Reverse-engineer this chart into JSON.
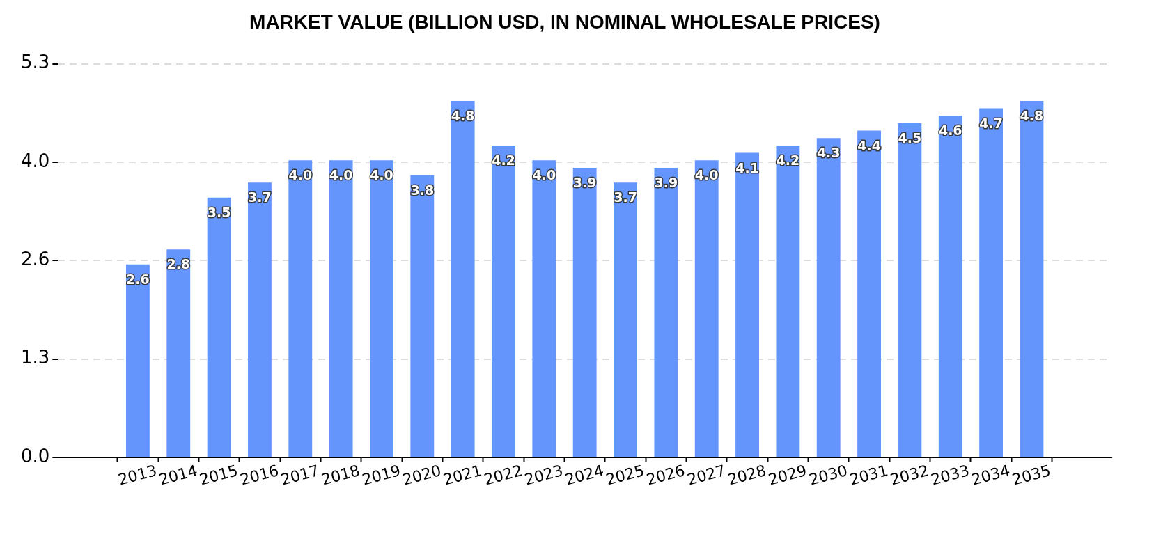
{
  "chart_data": {
    "type": "bar",
    "title": "MARKET VALUE (BILLION USD, IN NOMINAL WHOLESALE PRICES)",
    "categories": [
      "2013",
      "2014",
      "2015",
      "2016",
      "2017",
      "2018",
      "2019",
      "2020",
      "2021",
      "2022",
      "2023",
      "2024",
      "2025",
      "2026",
      "2027",
      "2028",
      "2029",
      "2030",
      "2031",
      "2032",
      "2033",
      "2034",
      "2035"
    ],
    "values": [
      2.6,
      2.8,
      3.5,
      3.7,
      4.0,
      4.0,
      4.0,
      3.8,
      4.8,
      4.2,
      4.0,
      3.9,
      3.7,
      3.9,
      4.0,
      4.1,
      4.2,
      4.3,
      4.4,
      4.5,
      4.6,
      4.7,
      4.8
    ],
    "value_labels": [
      "2.6",
      "2.8",
      "3.5",
      "3.7",
      "4.0",
      "4.0",
      "4.0",
      "3.8",
      "4.8",
      "4.2",
      "4.0",
      "3.9",
      "3.7",
      "3.9",
      "4.0",
      "4.1",
      "4.2",
      "4.3",
      "4.4",
      "4.5",
      "4.6",
      "4.7",
      "4.8"
    ],
    "color": "#6495fd",
    "ylim": [
      0,
      5.3
    ],
    "yticks": [
      {
        "value": 0,
        "label": "0.0"
      },
      {
        "value": 1.325,
        "label": "1.3"
      },
      {
        "value": 2.65,
        "label": "2.6"
      },
      {
        "value": 3.975,
        "label": "4.0"
      },
      {
        "value": 5.3,
        "label": "5.3"
      }
    ],
    "grid": "y"
  }
}
